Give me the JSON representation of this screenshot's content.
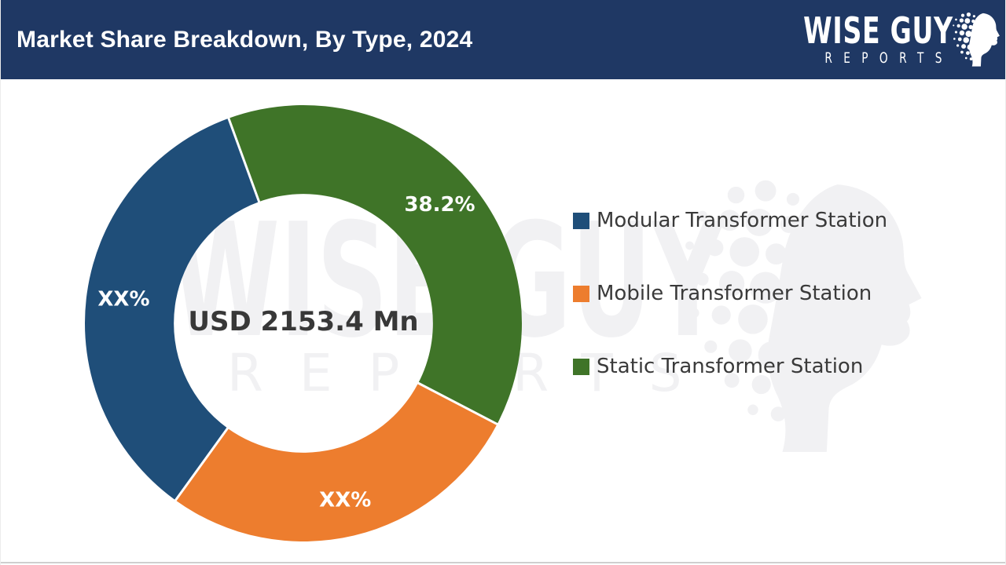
{
  "header": {
    "title": "Market Share Breakdown, By Type, 2024",
    "logo": {
      "line1": "WISE GUY",
      "line2": "REPORTS"
    }
  },
  "watermark": {
    "line1": "WISE GUY",
    "line2": "REPORTS"
  },
  "chart_data": {
    "type": "pie",
    "subtype": "donut",
    "title": "Market Share Breakdown, By Type, 2024",
    "center_label": "USD 2153.4 Mn",
    "start_angle_deg": 110,
    "direction": "clockwise",
    "donut_hole_ratio": 0.593,
    "label_radius_ratio": 0.83,
    "slices": [
      {
        "label": "Static Transformer Station",
        "value_pct": 38.2,
        "display_label": "38.2%",
        "color": "#3f7428"
      },
      {
        "label": "Mobile Transformer Station",
        "value_pct": 27.3,
        "display_label": "XX%",
        "color": "#ed7d2e"
      },
      {
        "label": "Modular Transformer Station",
        "value_pct": 34.5,
        "display_label": "XX%",
        "color": "#1f4e79"
      }
    ],
    "legend": [
      {
        "label": "Modular Transformer Station",
        "color": "#1f4e79"
      },
      {
        "label": "Mobile Transformer Station",
        "color": "#ed7d2e"
      },
      {
        "label": "Static Transformer Station",
        "color": "#3f7428"
      }
    ],
    "legend_position": "right"
  },
  "colors": {
    "header_bg": "#1f3864",
    "text_dark": "#3a3a3a",
    "watermark": "#f1f1f3",
    "separator": "#ffffff",
    "bottom_rule": "#cfcfcf"
  }
}
